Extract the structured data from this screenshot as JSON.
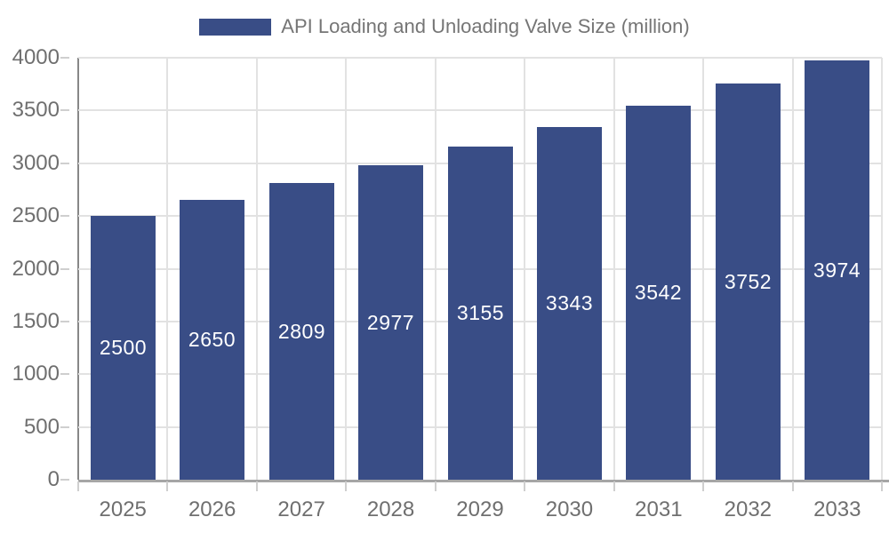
{
  "chart_data": {
    "type": "bar",
    "title": "API Loading and Unloading Valve Size (million)",
    "categories": [
      "2025",
      "2026",
      "2027",
      "2028",
      "2029",
      "2030",
      "2031",
      "2032",
      "2033"
    ],
    "values": [
      2500,
      2650,
      2809,
      2977,
      3155,
      3343,
      3542,
      3752,
      3974
    ],
    "xlabel": "",
    "ylabel": "",
    "ylim": [
      0,
      4000
    ],
    "yticks": [
      0,
      500,
      1000,
      1500,
      2000,
      2500,
      3000,
      3500,
      4000
    ],
    "grid": true,
    "legend_position": "top",
    "value_labels_shown": true,
    "colors": {
      "bar": "#394D86",
      "value_label": "#ffffff",
      "axis_text": "#6f6f6f",
      "legend_text": "#757575",
      "gridline": "#e2e2e2",
      "axis_line": "#878787",
      "tick": "#cfcfcf",
      "background": "#ffffff"
    }
  },
  "legend": {
    "label": "API Loading and Unloading Valve Size (million)"
  }
}
